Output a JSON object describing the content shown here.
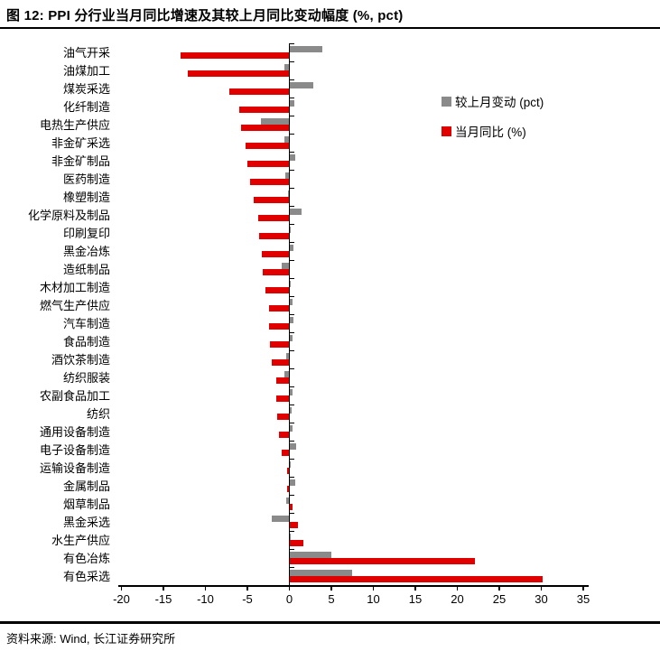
{
  "title": "图 12: PPI 分行业当月同比增速及其较上月同比变动幅度 (%, pct)",
  "source": "资料来源: Wind, 长江证券研究所",
  "colors": {
    "yoy_red": "#e00000",
    "mom_gray": "#8a8a8a",
    "axis": "#000000"
  },
  "chart_data": {
    "type": "bar",
    "orientation": "horizontal",
    "title": "PPI 分行业当月同比增速及其较上月同比变动幅度 (%, pct)",
    "categories": [
      "油气开采",
      "油煤加工",
      "煤炭采选",
      "化纤制造",
      "电热生产供应",
      "非金矿采选",
      "非金矿制品",
      "医药制造",
      "橡塑制造",
      "化学原料及制品",
      "印刷复印",
      "黑金冶炼",
      "造纸制品",
      "木材加工制造",
      "燃气生产供应",
      "汽车制造",
      "食品制造",
      "酒饮茶制造",
      "纺织服装",
      "农副食品加工",
      "纺织",
      "通用设备制造",
      "电子设备制造",
      "运输设备制造",
      "金属制品",
      "烟草制品",
      "黑金采选",
      "水生产供应",
      "有色冶炼",
      "有色采选"
    ],
    "series": [
      {
        "name": "较上月变动 (pct)",
        "color_key": "mom_gray",
        "values": [
          3.9,
          -0.6,
          2.9,
          0.6,
          -3.4,
          -0.6,
          0.7,
          -0.5,
          -0.2,
          1.5,
          0.1,
          0.5,
          -0.9,
          0.2,
          0.4,
          0.5,
          0.4,
          -0.4,
          -0.6,
          0.4,
          0.3,
          0.4,
          0.8,
          0.1,
          0.7,
          -0.4,
          -2.1,
          0.2,
          5.0,
          7.5
        ]
      },
      {
        "name": "当月同比 (%)",
        "color_key": "yoy_red",
        "values": [
          -13.0,
          -12.1,
          -7.1,
          -6.0,
          -5.7,
          -5.2,
          -5.0,
          -4.7,
          -4.2,
          -3.7,
          -3.6,
          -3.3,
          -3.2,
          -2.9,
          -2.4,
          -2.4,
          -2.3,
          -2.1,
          -1.6,
          -1.6,
          -1.4,
          -1.2,
          -0.9,
          -0.3,
          -0.3,
          0.4,
          1.0,
          1.7,
          22.1,
          30.2
        ]
      }
    ],
    "x_axis": {
      "min": -20,
      "max": 35,
      "tick_step": 5,
      "ticks": [
        -20,
        -15,
        -10,
        -5,
        0,
        5,
        10,
        15,
        20,
        25,
        30,
        35
      ]
    },
    "grid": false,
    "legend_position": "upper-right",
    "bar_layout": "grouped: gray(较上月变动) above red(当月同比) per category"
  }
}
